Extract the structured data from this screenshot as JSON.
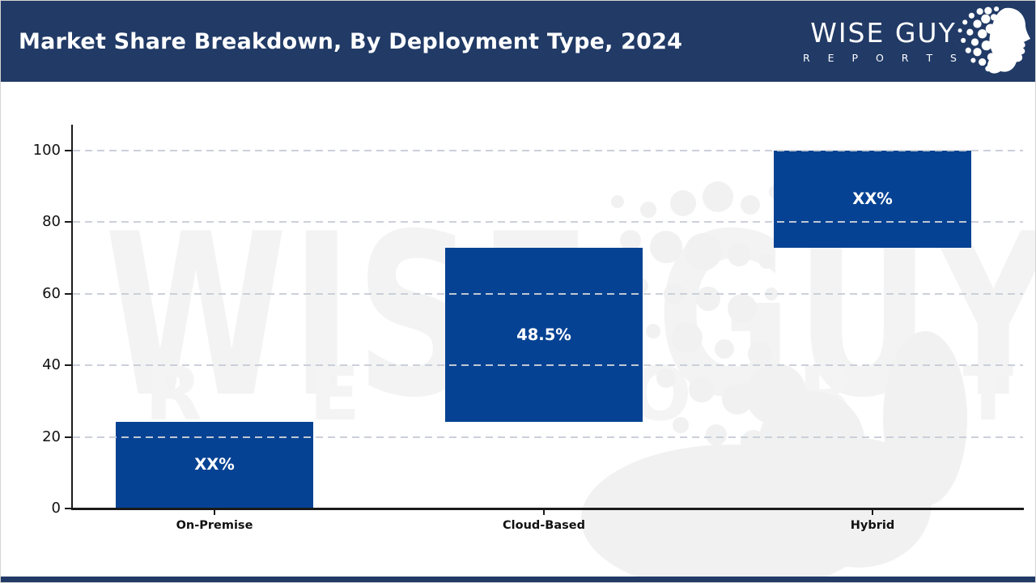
{
  "header": {
    "title": "Market Share Breakdown, By Deployment Type, 2024",
    "bg_color": "#213a66",
    "text_color": "#ffffff",
    "logo": {
      "line1": "WISE GUY",
      "line2": "R E P O R T S"
    }
  },
  "watermark": {
    "line1": "WISE GUY",
    "line2": "R E P O R T S"
  },
  "chart_data": {
    "type": "bar",
    "variant": "waterfall",
    "title": "Market Share Breakdown, By Deployment Type, 2024",
    "categories": [
      "On-Premise",
      "Cloud-Based",
      "Hybrid"
    ],
    "segments": [
      {
        "category": "On-Premise",
        "start": 0,
        "end": 24.25,
        "label": "XX%"
      },
      {
        "category": "Cloud-Based",
        "start": 24.25,
        "end": 72.75,
        "label": "48.5%"
      },
      {
        "category": "Hybrid",
        "start": 72.75,
        "end": 100,
        "label": "XX%"
      }
    ],
    "xlabel": "",
    "ylabel": "",
    "ylim": [
      0,
      100
    ],
    "yticks": [
      0,
      20,
      40,
      60,
      80,
      100
    ],
    "grid": "horizontal-dashed",
    "legend": "none",
    "bar_color": "#064293",
    "value_label_color": "#ffffff",
    "axis_color": "#1a1a1a",
    "grid_color": "#c8ced7"
  },
  "footer": {
    "bar_color": "#213a66"
  }
}
